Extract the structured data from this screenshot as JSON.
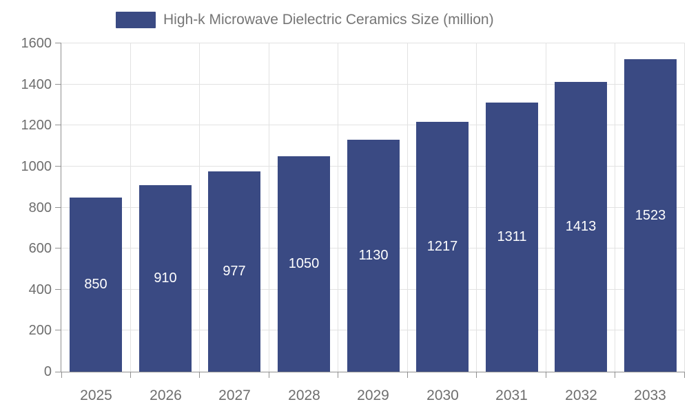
{
  "chart_data": {
    "type": "bar",
    "title": "High-k Microwave Dielectric Ceramics Size (million)",
    "categories": [
      "2025",
      "2026",
      "2027",
      "2028",
      "2029",
      "2030",
      "2031",
      "2032",
      "2033"
    ],
    "series": [
      {
        "name": "High-k Microwave Dielectric Ceramics Size (million)",
        "values": [
          850,
          910,
          977,
          1050,
          1130,
          1217,
          1311,
          1413,
          1523
        ],
        "color": "#3A4A83"
      }
    ],
    "xlabel": "",
    "ylabel": "",
    "ylim": [
      0,
      1600
    ],
    "ytick_interval": 200,
    "ytick_labels": [
      "0",
      "200",
      "400",
      "600",
      "800",
      "1000",
      "1200",
      "1400",
      "1600"
    ],
    "grid": true,
    "legend_position": "top-center",
    "value_labels_position": "inside-center",
    "value_label_color": "#FFFFFF"
  },
  "colors": {
    "background": "#FFFFFF",
    "bar": "#3A4A83",
    "axis_line": "#909090",
    "gridline": "#E2E2E2",
    "tick_label": "#6E6E6E",
    "legend_text": "#757575"
  }
}
